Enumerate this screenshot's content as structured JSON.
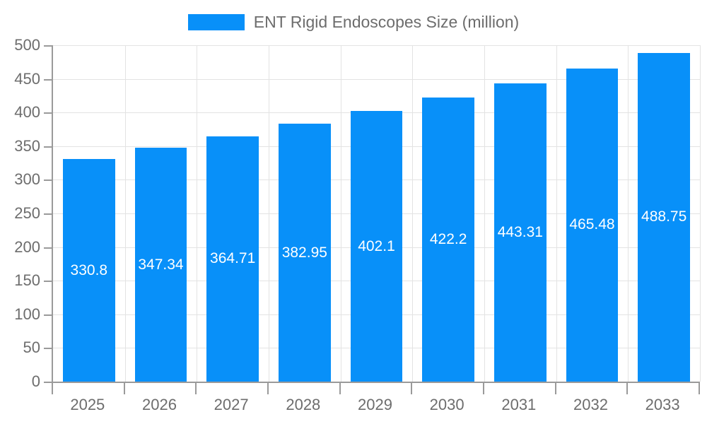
{
  "chart_data": {
    "type": "bar",
    "title": "",
    "legend": "ENT Rigid Endoscopes Size (million)",
    "legend_position": "top",
    "categories": [
      "2025",
      "2026",
      "2027",
      "2028",
      "2029",
      "2030",
      "2031",
      "2032",
      "2033"
    ],
    "values": [
      330.8,
      347.34,
      364.71,
      382.95,
      402.1,
      422.2,
      443.31,
      465.48,
      488.75
    ],
    "xlabel": "",
    "ylabel": "",
    "ylim": [
      0,
      500
    ],
    "ytick_step": 50,
    "grid": "on",
    "value_labels": "inside-center",
    "colors": {
      "bar": "#0890f9",
      "bar_value_label": "#ffffff",
      "grid": "#e3e3e3",
      "axis": "#9a9a9a",
      "tick_text": "#6d6d6d",
      "legend_text": "#6d6d6d",
      "background": "#ffffff"
    }
  }
}
